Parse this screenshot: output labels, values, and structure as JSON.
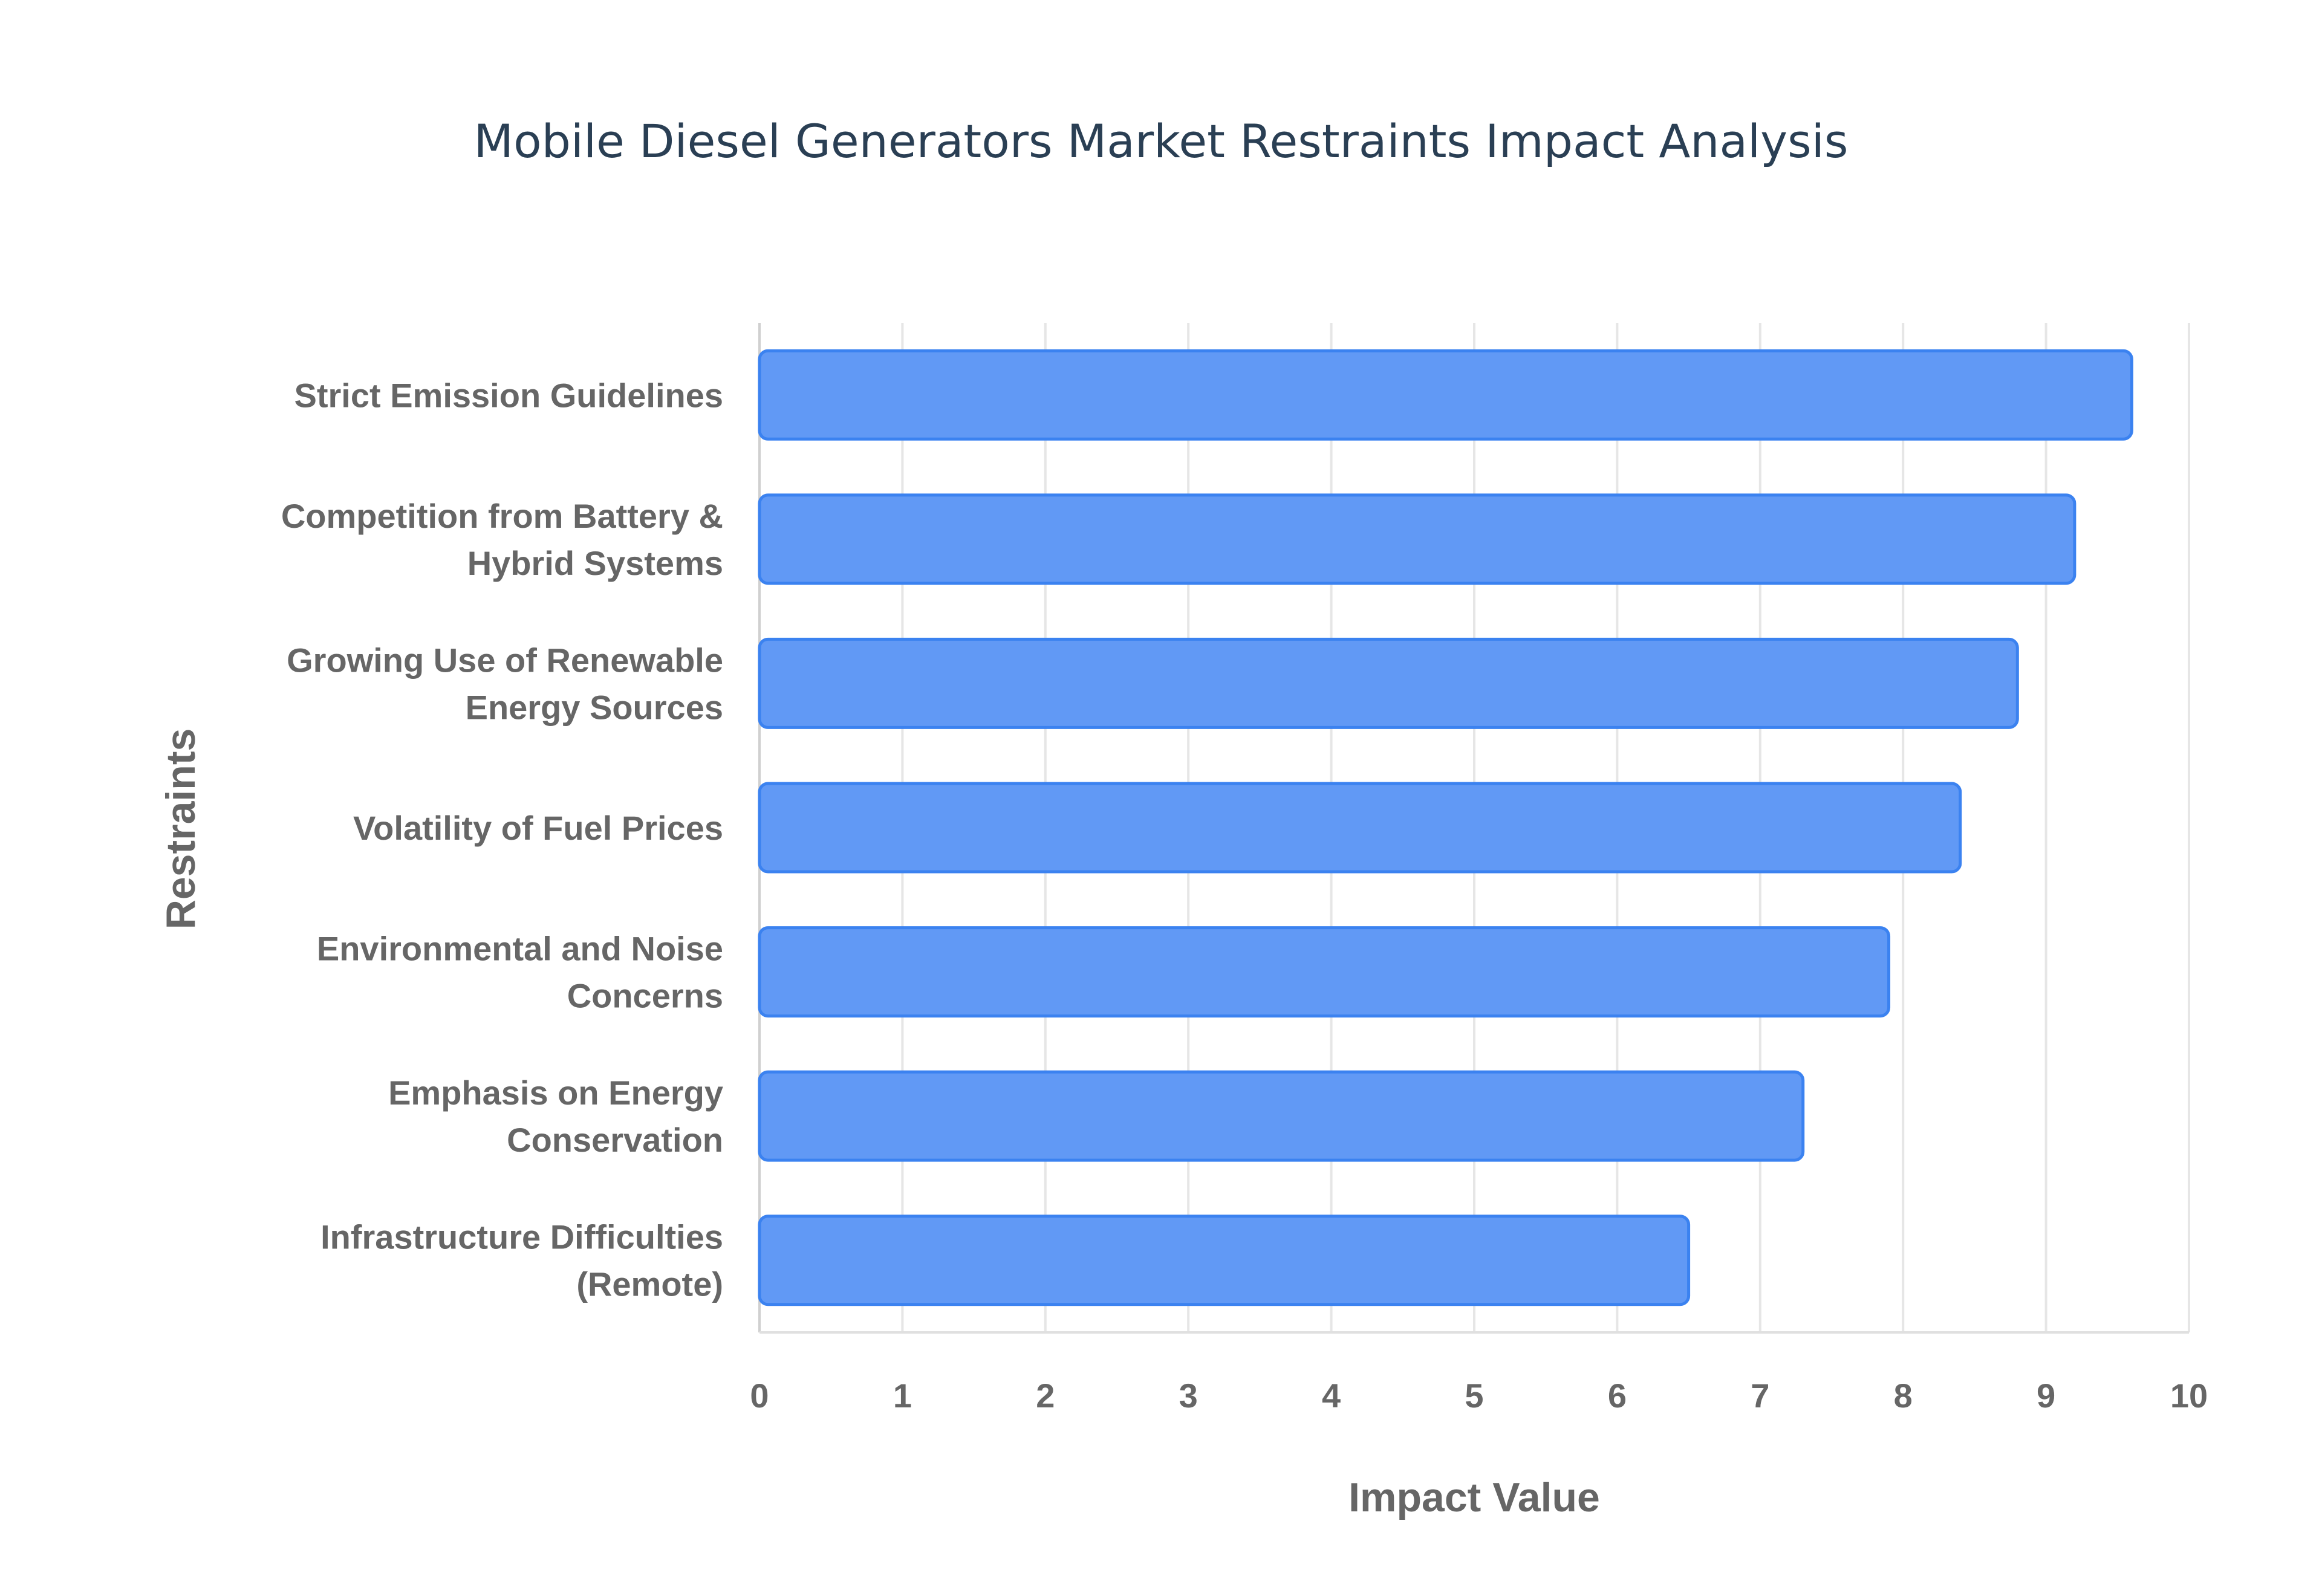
{
  "chart_data": {
    "type": "bar",
    "orientation": "horizontal",
    "title": "Mobile Diesel Generators Market Restraints Impact Analysis",
    "xlabel": "Impact Value",
    "ylabel": "Restraints",
    "xlim": [
      0,
      10
    ],
    "xticks": [
      "0",
      "1",
      "2",
      "3",
      "4",
      "5",
      "6",
      "7",
      "8",
      "9",
      "10"
    ],
    "grid": true,
    "legend": "none",
    "categories": [
      [
        "Strict Emission Guidelines"
      ],
      [
        "Competition from Battery &",
        "Hybrid Systems"
      ],
      [
        "Growing Use of Renewable",
        "Energy Sources"
      ],
      [
        "Volatility of Fuel Prices"
      ],
      [
        "Environmental and Noise",
        "Concerns"
      ],
      [
        "Emphasis on Energy",
        "Conservation"
      ],
      [
        "Infrastructure Difficulties",
        "(Remote)"
      ]
    ],
    "values": [
      9.6,
      9.2,
      8.8,
      8.4,
      7.9,
      7.3,
      6.5
    ],
    "colors": {
      "bar_fill": "#6199f5",
      "bar_stroke": "#3b82f0",
      "grid": "#e6e6e6",
      "text": "#666666",
      "title": "#2a3f54"
    }
  }
}
